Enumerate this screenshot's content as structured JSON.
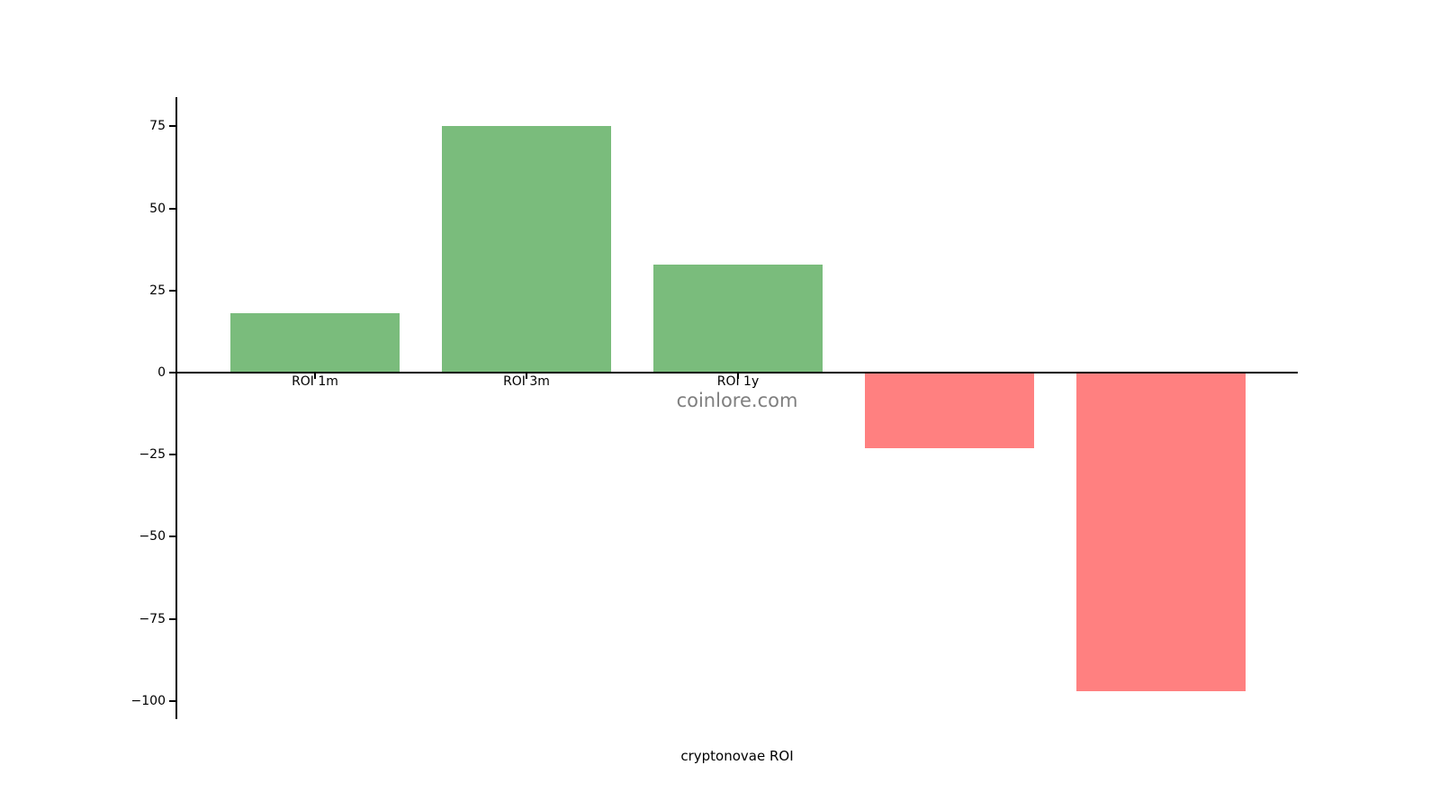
{
  "chart_data": {
    "type": "bar",
    "title": "",
    "xlabel": "cryptonovae ROI",
    "watermark": "coinlore.com",
    "categories": [
      "ROI 1m",
      "ROI 3m",
      "ROI 1y",
      "",
      ""
    ],
    "values": [
      18,
      75,
      33,
      -23,
      -97
    ],
    "colors": {
      "positive": "#7abc7c",
      "negative": "#ff8080",
      "axis": "#000000",
      "watermark": "#7f7f7f"
    },
    "ytick_values": [
      75,
      50,
      25,
      0,
      -25,
      -50,
      -75,
      -100
    ],
    "ytick_labels": [
      "75",
      "50",
      "25",
      "0",
      "−25",
      "−50",
      "−75",
      "−100"
    ],
    "ylim": [
      -105.6,
      83.6
    ],
    "grid": false,
    "legend": false
  }
}
